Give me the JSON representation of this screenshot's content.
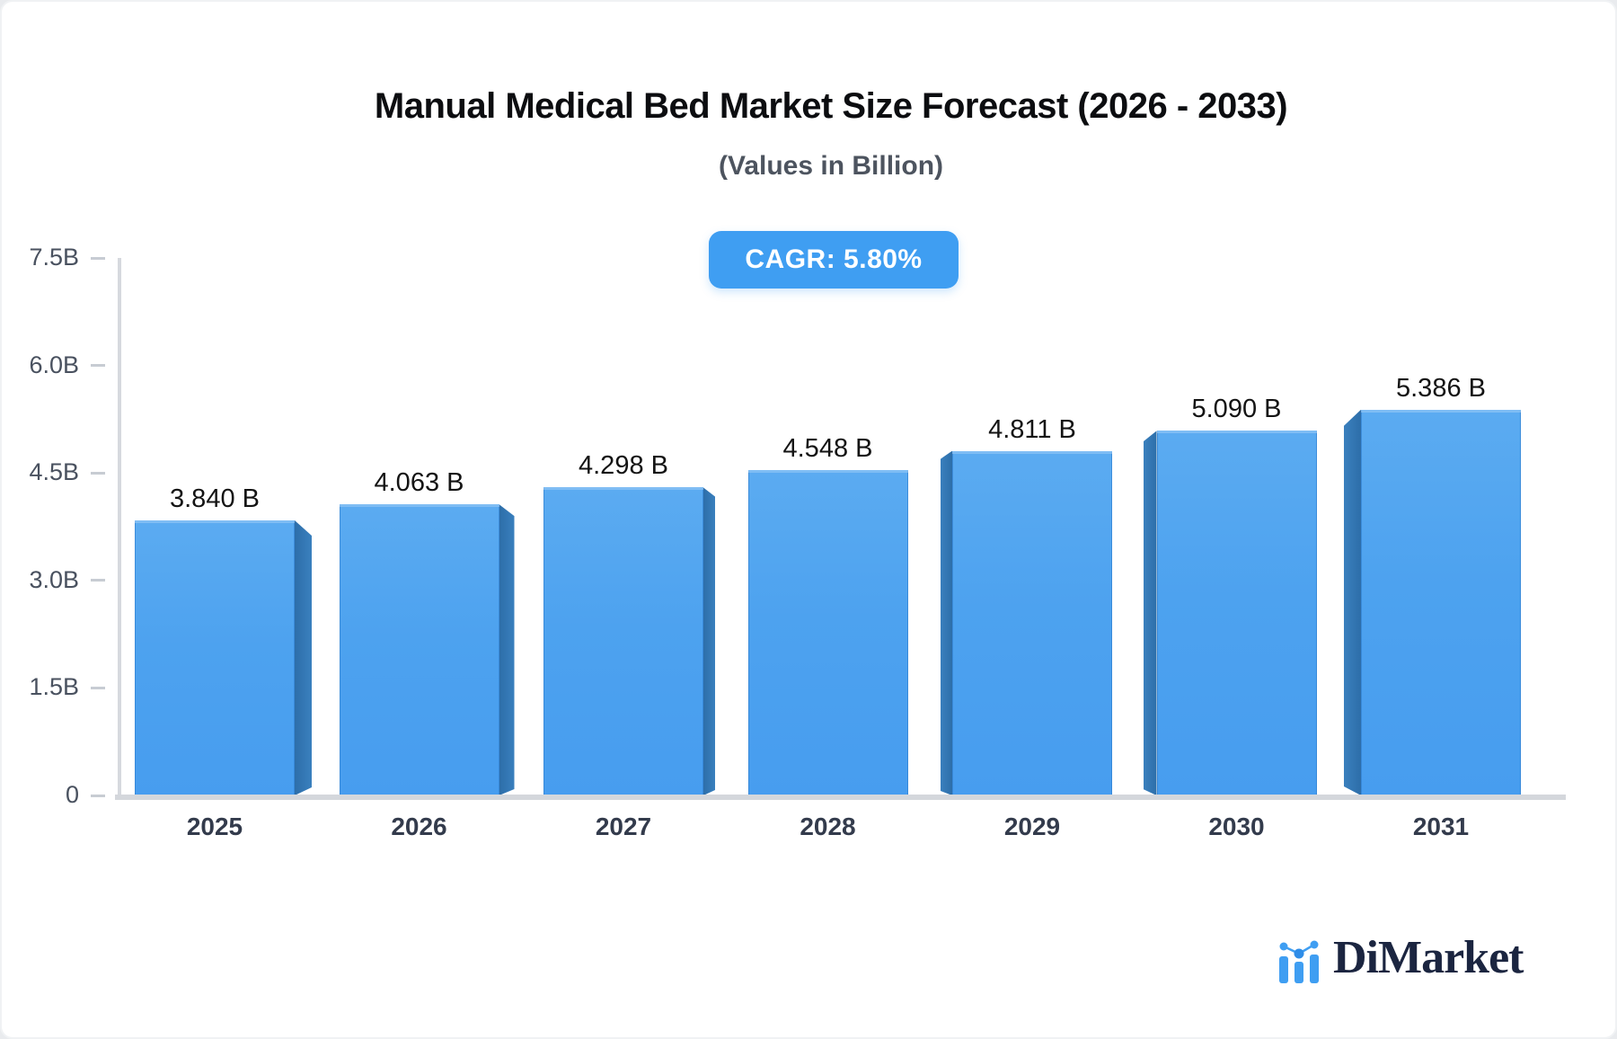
{
  "header": {
    "title": "Manual Medical Bed Market Size Forecast (2026 - 2033)",
    "subtitle": "(Values in Billion)",
    "cagr_badge": "CAGR: 5.80%"
  },
  "chart_data": {
    "type": "bar",
    "title": "Manual Medical Bed Market Size Forecast (2026 - 2033)",
    "subtitle": "(Values in Billion)",
    "cagr": "5.80%",
    "categories": [
      "2025",
      "2026",
      "2027",
      "2028",
      "2029",
      "2030",
      "2031"
    ],
    "values": [
      3.84,
      4.063,
      4.298,
      4.548,
      4.811,
      5.09,
      5.386
    ],
    "value_labels": [
      "3.840 B",
      "4.063 B",
      "4.298 B",
      "4.548 B",
      "4.811 B",
      "5.090 B",
      "5.386 B"
    ],
    "y_ticks": [
      {
        "label": "7.5B",
        "value": 7.5
      },
      {
        "label": "6.0B",
        "value": 6.0
      },
      {
        "label": "4.5B",
        "value": 4.5
      },
      {
        "label": "3.0B",
        "value": 3.0
      },
      {
        "label": "1.5B",
        "value": 1.5
      },
      {
        "label": "0",
        "value": 0.0
      }
    ],
    "ylim": [
      0,
      7.5
    ],
    "grid": false,
    "legend": false,
    "colors": {
      "bar_face": "#4da2ef",
      "bar_face_highlight": "#7fbdf4",
      "bar_side": "#2e74b0",
      "axis": "#d6d9de",
      "tick": "#c7ccd3",
      "axis_label": "#49515f",
      "category_label": "#333b4c",
      "value_label": "#141414",
      "badge_background": "#3f9ef2",
      "badge_text": "#ffffff"
    }
  },
  "footer": {
    "brand": "DiMarket",
    "brand_color": "#1b2540",
    "icon": "mini-bar-chart-icon",
    "icon_color": "#3f9ef2"
  }
}
